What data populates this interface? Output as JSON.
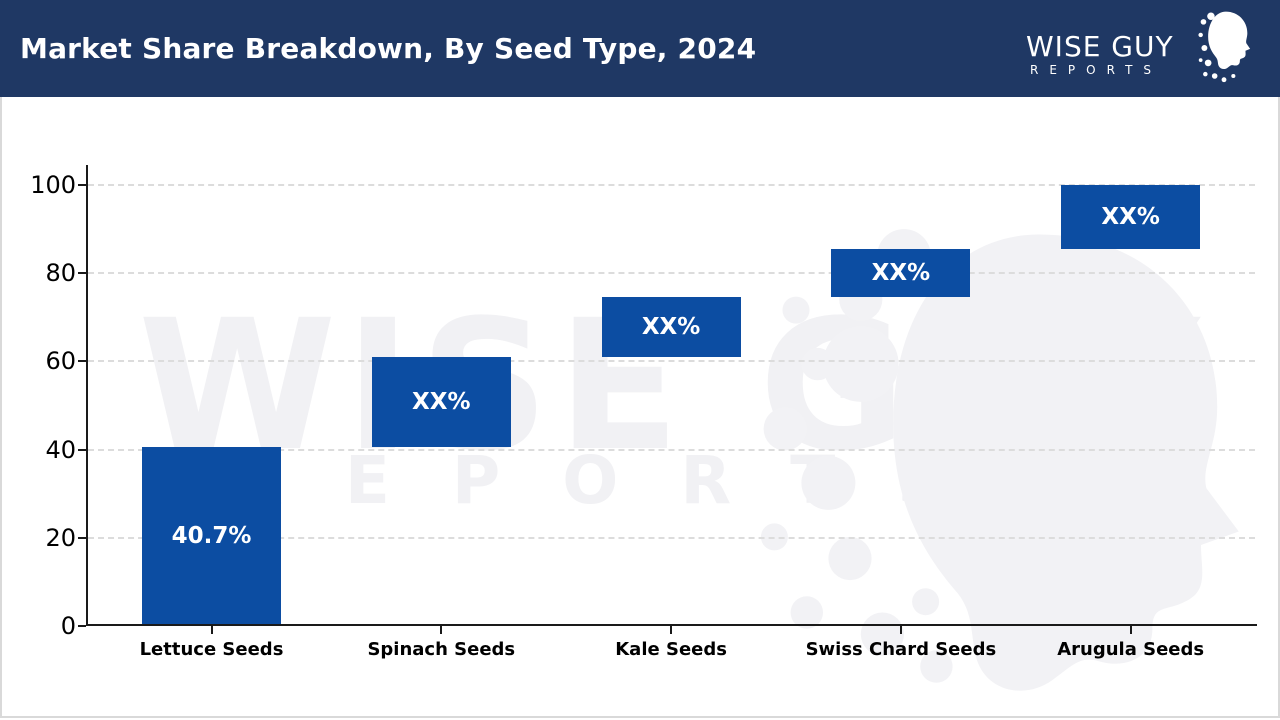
{
  "header": {
    "title": "Market Share Breakdown, By Seed Type, 2024",
    "logo_line1": "WISE GUY",
    "logo_line2": "REPORTS"
  },
  "watermark": {
    "line1": "WISE GUY",
    "line2": "REPORTS"
  },
  "colors": {
    "header_bg": "#1f3864",
    "bar": "#0c4da2",
    "bar_label": "#ffffff",
    "axis": "#1a1a1a",
    "grid": "#dcdcdc",
    "watermark": "#f1f1f4",
    "title_text": "#ffffff"
  },
  "chart_data": {
    "type": "bar",
    "subtype": "waterfall",
    "title": "Market Share Breakdown, By Seed Type, 2024",
    "categories": [
      "Lettuce Seeds",
      "Spinach Seeds",
      "Kale Seeds",
      "Swiss Chard Seeds",
      "Arugula Seeds"
    ],
    "segments": [
      {
        "category": "Lettuce Seeds",
        "start": 0,
        "end": 40.7,
        "label": "40.7%"
      },
      {
        "category": "Spinach Seeds",
        "start": 40.7,
        "end": 61.0,
        "label": "XX%"
      },
      {
        "category": "Kale Seeds",
        "start": 61.0,
        "end": 74.5,
        "label": "XX%"
      },
      {
        "category": "Swiss Chard Seeds",
        "start": 74.5,
        "end": 85.5,
        "label": "XX%"
      },
      {
        "category": "Arugula Seeds",
        "start": 85.5,
        "end": 100,
        "label": "XX%"
      }
    ],
    "xlabel": "",
    "ylabel": "",
    "ylim": [
      0,
      100
    ],
    "yticks": [
      0,
      20,
      40,
      60,
      80,
      100
    ],
    "grid": "horizontal-dashed",
    "legend": "none"
  }
}
